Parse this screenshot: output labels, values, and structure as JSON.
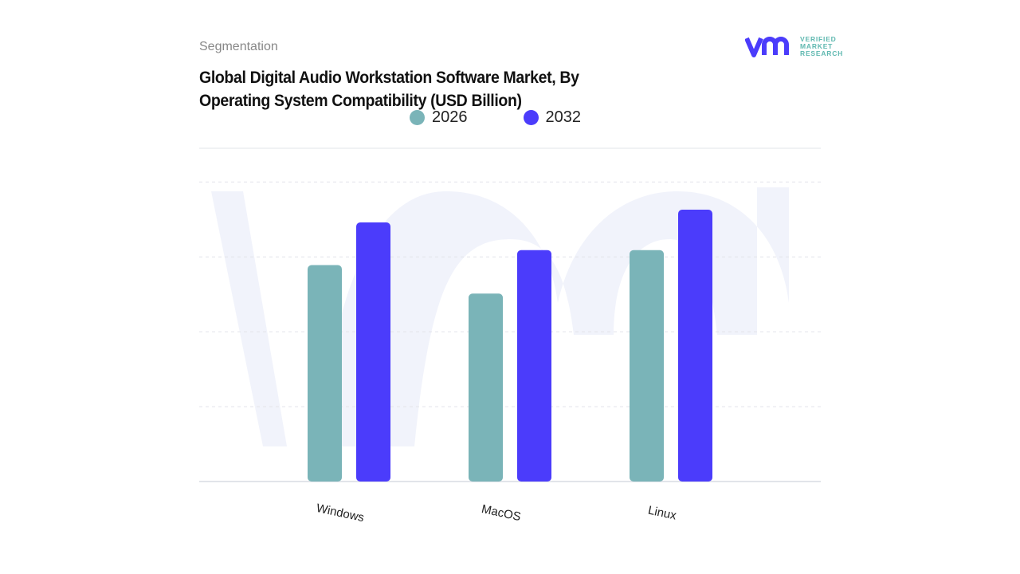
{
  "header": {
    "section": "Segmentation",
    "title": "Global Digital Audio Workstation Software Market, By Operating System Compatibility (USD Billion)"
  },
  "logo": {
    "lines": [
      "VERIFIED",
      "MARKET",
      "RESEARCH"
    ],
    "mark": "vmr"
  },
  "colors": {
    "series_2026": "#7ab4b8",
    "series_2032": "#4b3cfb",
    "grid": "#e2e4ea",
    "watermark": "#f1f3fb"
  },
  "chart_data": {
    "type": "bar",
    "title": "Global Digital Audio Workstation Software Market, By Operating System Compatibility (USD Billion)",
    "categories": [
      "Windows",
      "MacOS",
      "Linux"
    ],
    "series": [
      {
        "name": "2026",
        "values": [
          2.89,
          2.51,
          3.09
        ]
      },
      {
        "name": "2032",
        "values": [
          3.46,
          3.09,
          3.63
        ]
      }
    ],
    "ylim": [
      0,
      4.45
    ],
    "y_ticks_labeled": false,
    "grid": true,
    "legend": "top-center",
    "xlabel": "",
    "ylabel": ""
  }
}
